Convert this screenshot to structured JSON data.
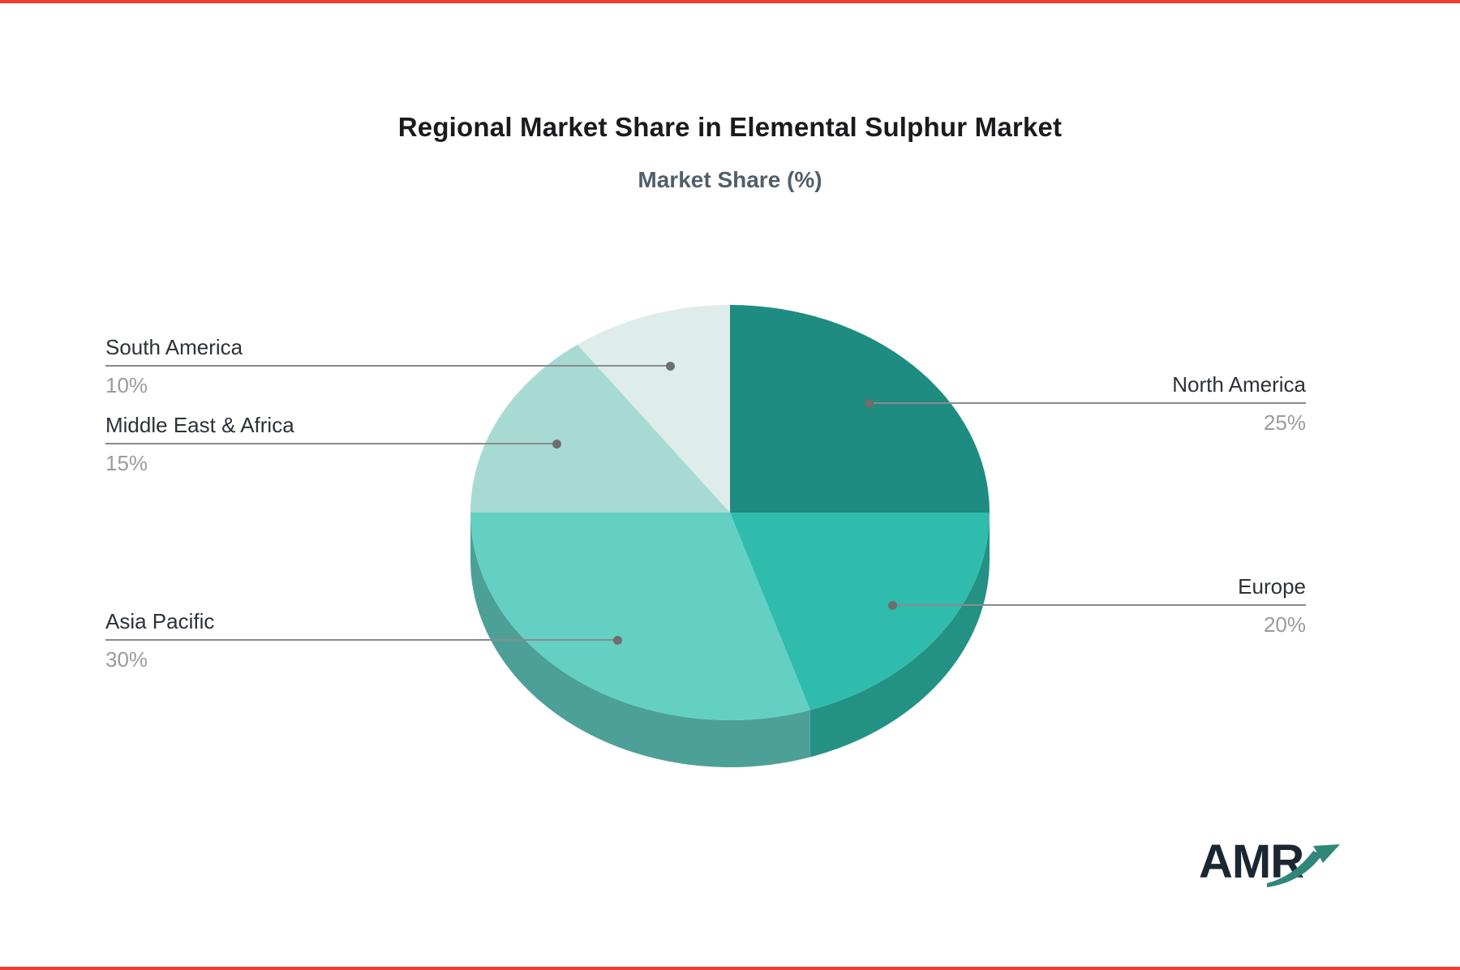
{
  "title": "Regional Market Share in Elemental Sulphur Market",
  "subtitle": "Market Share (%)",
  "logo_text": "AMR",
  "colors": {
    "title_text": "#1b1b1f",
    "subtitle_text": "#525f6b",
    "label_text": "#2d3138",
    "value_text": "#9b9b9b",
    "leader_line": "#8b8b8b",
    "leader_dot": "#6e6e6e",
    "logo_text": "#1b2731",
    "logo_arrow": "#2f8679",
    "edge_bar": "#f43b2e"
  },
  "chart_data": {
    "type": "pie",
    "title": "Regional Market Share in Elemental Sulphur Market",
    "subtitle": "Market Share (%)",
    "unit": "%",
    "style": "3d",
    "start_angle": "12-oclock",
    "direction": "clockwise",
    "slices": [
      {
        "label": "North America",
        "value": 25,
        "color": "#1E8C80"
      },
      {
        "label": "Europe",
        "value": 20,
        "color": "#2FBCAD"
      },
      {
        "label": "Asia Pacific",
        "value": 30,
        "color": "#64D0C4"
      },
      {
        "label": "Middle East & Africa",
        "value": 15,
        "color": "#A7DAD3"
      },
      {
        "label": "South America",
        "value": 10,
        "color": "#DEEDEA"
      }
    ]
  },
  "callouts": [
    {
      "id": "south-america",
      "label": "South America",
      "value": "10%"
    },
    {
      "id": "middle-east-africa",
      "label": "Middle East & Africa",
      "value": "15%"
    },
    {
      "id": "asia-pacific",
      "label": "Asia Pacific",
      "value": "30%"
    },
    {
      "id": "north-america",
      "label": "North America",
      "value": "25%"
    },
    {
      "id": "europe",
      "label": "Europe",
      "value": "20%"
    }
  ]
}
